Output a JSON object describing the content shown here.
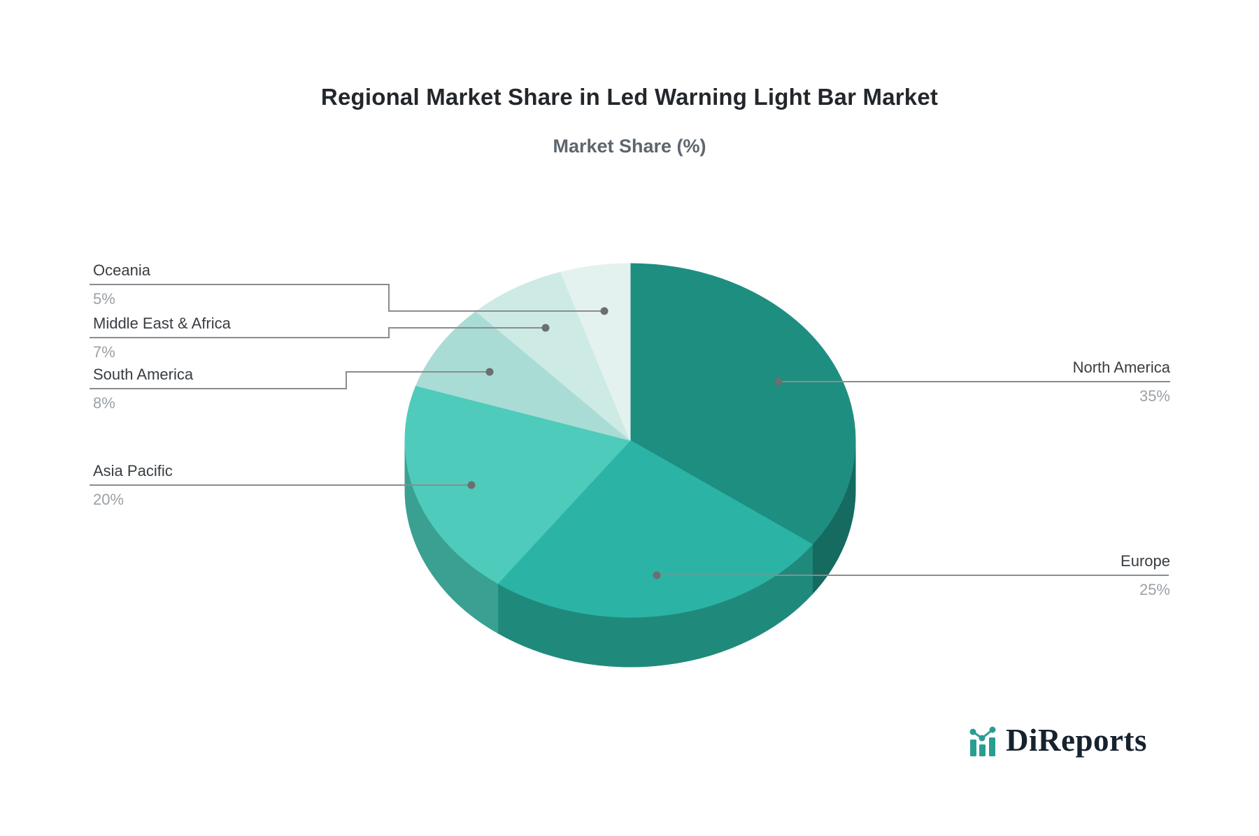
{
  "header": {
    "title": "Regional Market Share in Led Warning Light Bar Market",
    "subtitle": "Market Share (%)"
  },
  "logo": {
    "text": "DiReports",
    "icon": "bar-chart-icon",
    "icon_color": "#2a9d92",
    "text_color": "#16222e"
  },
  "chart_data": {
    "type": "pie",
    "title": "Regional Market Share in Led Warning Light Bar Market",
    "subtitle": "Market Share (%)",
    "unit": "%",
    "effect": "3d",
    "start_angle_deg": 0,
    "direction": "clockwise",
    "legend_position": "callout-labels",
    "labels": [
      "North America",
      "Europe",
      "Asia Pacific",
      "South America",
      "Middle East & Africa",
      "Oceania"
    ],
    "values": [
      35,
      25,
      20,
      8,
      7,
      5
    ],
    "display_values": [
      "35%",
      "25%",
      "20%",
      "8%",
      "7%",
      "5%"
    ],
    "slice_colors": [
      "#1e8e80",
      "#2bb4a5",
      "#4ecbba",
      "#a9dcd5",
      "#cdeae5",
      "#e4f2ef"
    ],
    "slice_side_colors": [
      "#156b60",
      "#1f8a7c",
      "#3aa092",
      "#7fc2b9",
      "#a8d6cf",
      "#c2e2dc"
    ],
    "leader_line_color": "#8a8c8e",
    "leader_dot_color": "#6c6e71"
  }
}
